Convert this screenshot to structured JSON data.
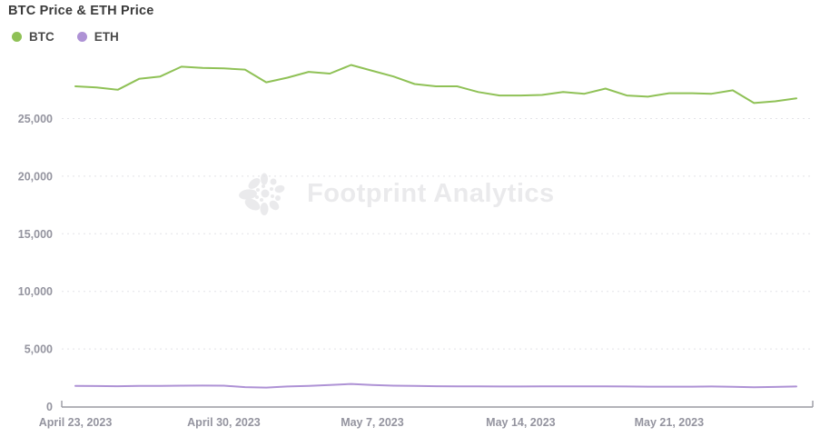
{
  "title": "BTC Price & ETH Price",
  "legend": {
    "items": [
      {
        "label": "BTC",
        "color": "#8fc156"
      },
      {
        "label": "ETH",
        "color": "#ae92d5"
      }
    ]
  },
  "watermark": {
    "text": "Footprint Analytics"
  },
  "chart_data": {
    "type": "line",
    "title": "BTC Price & ETH Price",
    "legend_position": "top-left",
    "grid": "horizontal-dotted",
    "ylim": [
      0,
      30000
    ],
    "y_ticks": [
      {
        "value": 0,
        "label": "0"
      },
      {
        "value": 5000,
        "label": "5,000"
      },
      {
        "value": 10000,
        "label": "10,000"
      },
      {
        "value": 15000,
        "label": "15,000"
      },
      {
        "value": 20000,
        "label": "20,000"
      },
      {
        "value": 25000,
        "label": "25,000"
      }
    ],
    "n_points": 35,
    "x_tick_labels": [
      {
        "index": 0,
        "label": "April 23, 2023"
      },
      {
        "index": 7,
        "label": "April 30, 2023"
      },
      {
        "index": 14,
        "label": "May 7, 2023"
      },
      {
        "index": 21,
        "label": "May 14, 2023"
      },
      {
        "index": 28,
        "label": "May 21, 2023"
      }
    ],
    "series": [
      {
        "name": "BTC",
        "color": "#8fc156",
        "values": [
          27800,
          27700,
          27500,
          28450,
          28650,
          29500,
          29400,
          29350,
          29250,
          28150,
          28550,
          29050,
          28900,
          29650,
          29150,
          28650,
          28000,
          27800,
          27800,
          27300,
          27000,
          27000,
          27050,
          27300,
          27150,
          27600,
          27000,
          26900,
          27200,
          27200,
          27150,
          27450,
          26350,
          26500,
          26750
        ]
      },
      {
        "name": "ETH",
        "color": "#ae92d5",
        "values": [
          1790,
          1780,
          1770,
          1790,
          1800,
          1810,
          1820,
          1810,
          1690,
          1650,
          1740,
          1800,
          1870,
          1960,
          1880,
          1810,
          1790,
          1770,
          1760,
          1750,
          1740,
          1740,
          1750,
          1760,
          1760,
          1750,
          1740,
          1730,
          1730,
          1730,
          1740,
          1720,
          1680,
          1700,
          1740
        ]
      }
    ]
  }
}
